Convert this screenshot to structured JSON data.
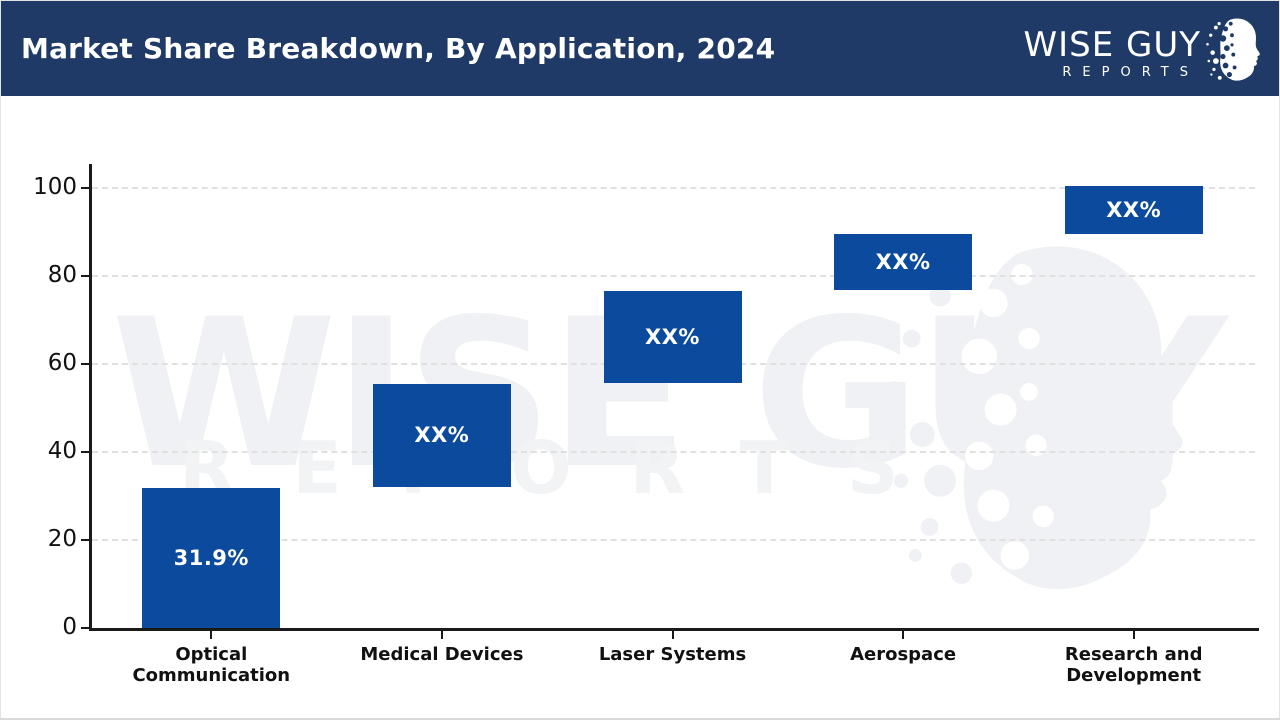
{
  "header": {
    "title": "Market Share Breakdown, By Application, 2024",
    "brand_line1": "WISE GUY",
    "brand_line2": "REPORTS"
  },
  "watermark": {
    "line1": "WISE GUY",
    "line2": "REPORTS"
  },
  "colors": {
    "header_bg": "#203A67",
    "bar": "#0B4A9D",
    "grid": "#E0E0E0",
    "axis": "#1A1A1A",
    "watermark": "#F0F1F4",
    "bar_label": "#FFFFFF"
  },
  "chart_data": {
    "type": "bar",
    "subtype": "floating-waterfall",
    "title": "Market Share Breakdown, By Application, 2024",
    "categories": [
      "Optical\nCommunication",
      "Medical Devices",
      "Laser Systems",
      "Aerospace",
      "Research and\nDevelopment"
    ],
    "bars": [
      {
        "category": "Optical Communication",
        "start": 0,
        "end": 31.9,
        "label": "31.9%"
      },
      {
        "category": "Medical Devices",
        "start": 32.1,
        "end": 55.5,
        "label": "XX%"
      },
      {
        "category": "Laser Systems",
        "start": 55.6,
        "end": 76.7,
        "label": "XX%"
      },
      {
        "category": "Aerospace",
        "start": 76.9,
        "end": 89.5,
        "label": "XX%"
      },
      {
        "category": "Research and Development",
        "start": 89.6,
        "end": 100.4,
        "label": "XX%"
      }
    ],
    "yticks": [
      0,
      20,
      40,
      60,
      80,
      100
    ],
    "ylim": [
      0,
      105
    ],
    "xlabel": "",
    "ylabel": "",
    "grid": "horizontal-dashed",
    "legend": "none",
    "bar_color": "#0B4A9D"
  }
}
